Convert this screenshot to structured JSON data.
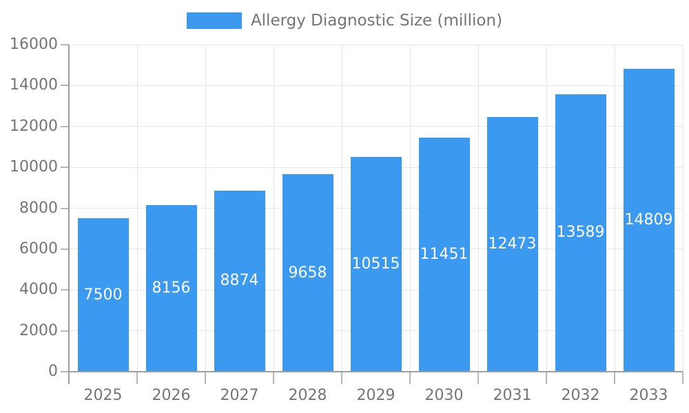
{
  "chart_data": {
    "type": "bar",
    "title": "",
    "legend": {
      "label": "Allergy Diagnostic Size (million)",
      "position": "top"
    },
    "categories": [
      "2025",
      "2026",
      "2027",
      "2028",
      "2029",
      "2030",
      "2031",
      "2032",
      "2033"
    ],
    "series": [
      {
        "name": "Allergy Diagnostic Size (million)",
        "values": [
          7500,
          8156,
          8874,
          9658,
          10515,
          11451,
          12473,
          13589,
          14809
        ]
      }
    ],
    "data_labels": [
      "7500",
      "8156",
      "8874",
      "9658",
      "10515",
      "11451",
      "12473",
      "13589",
      "14809"
    ],
    "xlabel": "",
    "ylabel": "",
    "ylim": [
      0,
      16000
    ],
    "ytick_step": 2000,
    "yticks": [
      0,
      2000,
      4000,
      6000,
      8000,
      10000,
      12000,
      14000,
      16000
    ],
    "grid": true,
    "colors": {
      "bar": "#3B99F0",
      "bar_label": "#ffffff",
      "axis": "#9e9e9e",
      "tick": "#b5b5b5",
      "gridline": "#e6e6e6",
      "text": "#757575"
    }
  }
}
